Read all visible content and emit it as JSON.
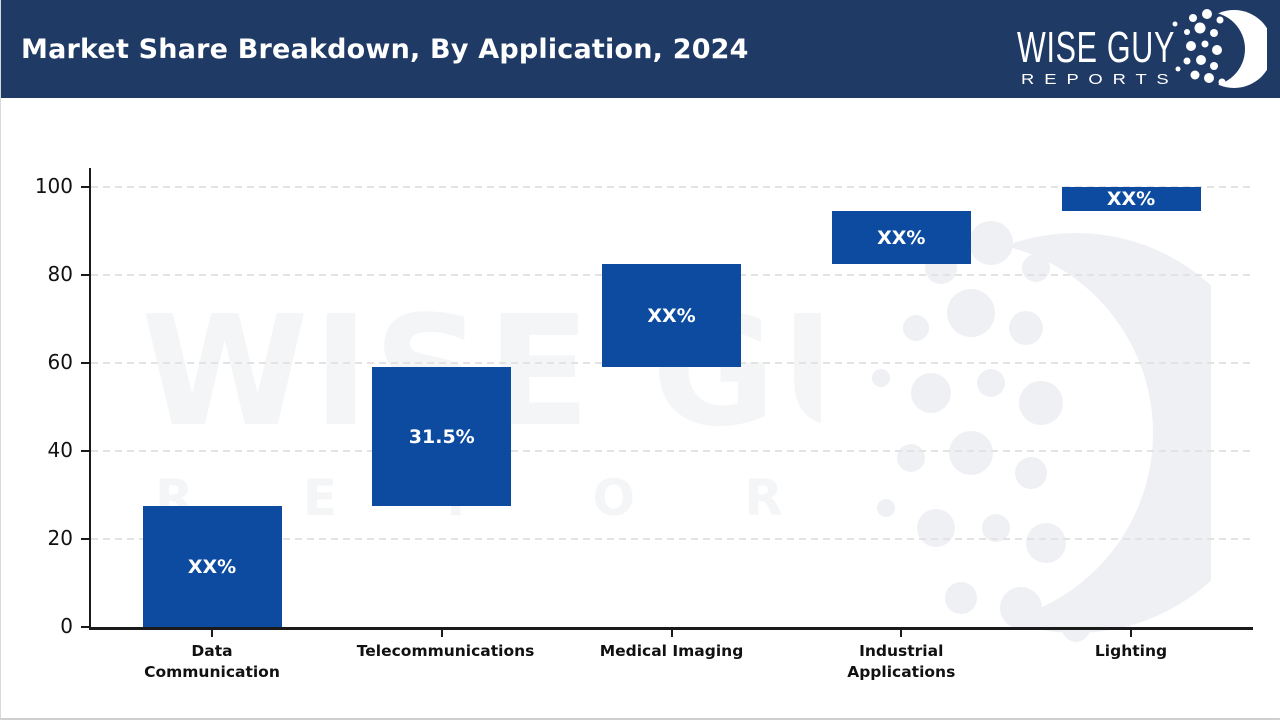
{
  "header": {
    "title": "Market Share Breakdown, By Application, 2024",
    "bg_color": "#203a66",
    "logo": {
      "line1": "WISE GUY",
      "line2": "R E P O R T S"
    }
  },
  "watermark": {
    "line1": "WISE GUY",
    "line2": "R E P O R T S"
  },
  "chart_data": {
    "type": "bar",
    "subtype": "waterfall",
    "title": "Market Share Breakdown, By Application, 2024",
    "categories": [
      "Data Communication",
      "Telecommunications",
      "Medical Imaging",
      "Industrial Applications",
      "Lighting"
    ],
    "values": [
      27.5,
      31.5,
      23.5,
      12,
      5.5
    ],
    "segments": [
      {
        "category": "Data Communication",
        "start": 0,
        "end": 27.5,
        "label": "XX%"
      },
      {
        "category": "Telecommunications",
        "start": 27.5,
        "end": 59,
        "label": "31.5%"
      },
      {
        "category": "Medical Imaging",
        "start": 59,
        "end": 82.5,
        "label": "XX%"
      },
      {
        "category": "Industrial Applications",
        "start": 82.5,
        "end": 94.5,
        "label": "XX%"
      },
      {
        "category": "Lighting",
        "start": 94.5,
        "end": 100,
        "label": "XX%"
      }
    ],
    "yticks": [
      0,
      20,
      40,
      60,
      80,
      100
    ],
    "ylim": [
      0,
      104
    ],
    "bar_color": "#0c4ba0",
    "label_color": "#ffffff",
    "axis_color": "#1a1a1a",
    "grid": "horizontal dashed",
    "legend": "none"
  }
}
